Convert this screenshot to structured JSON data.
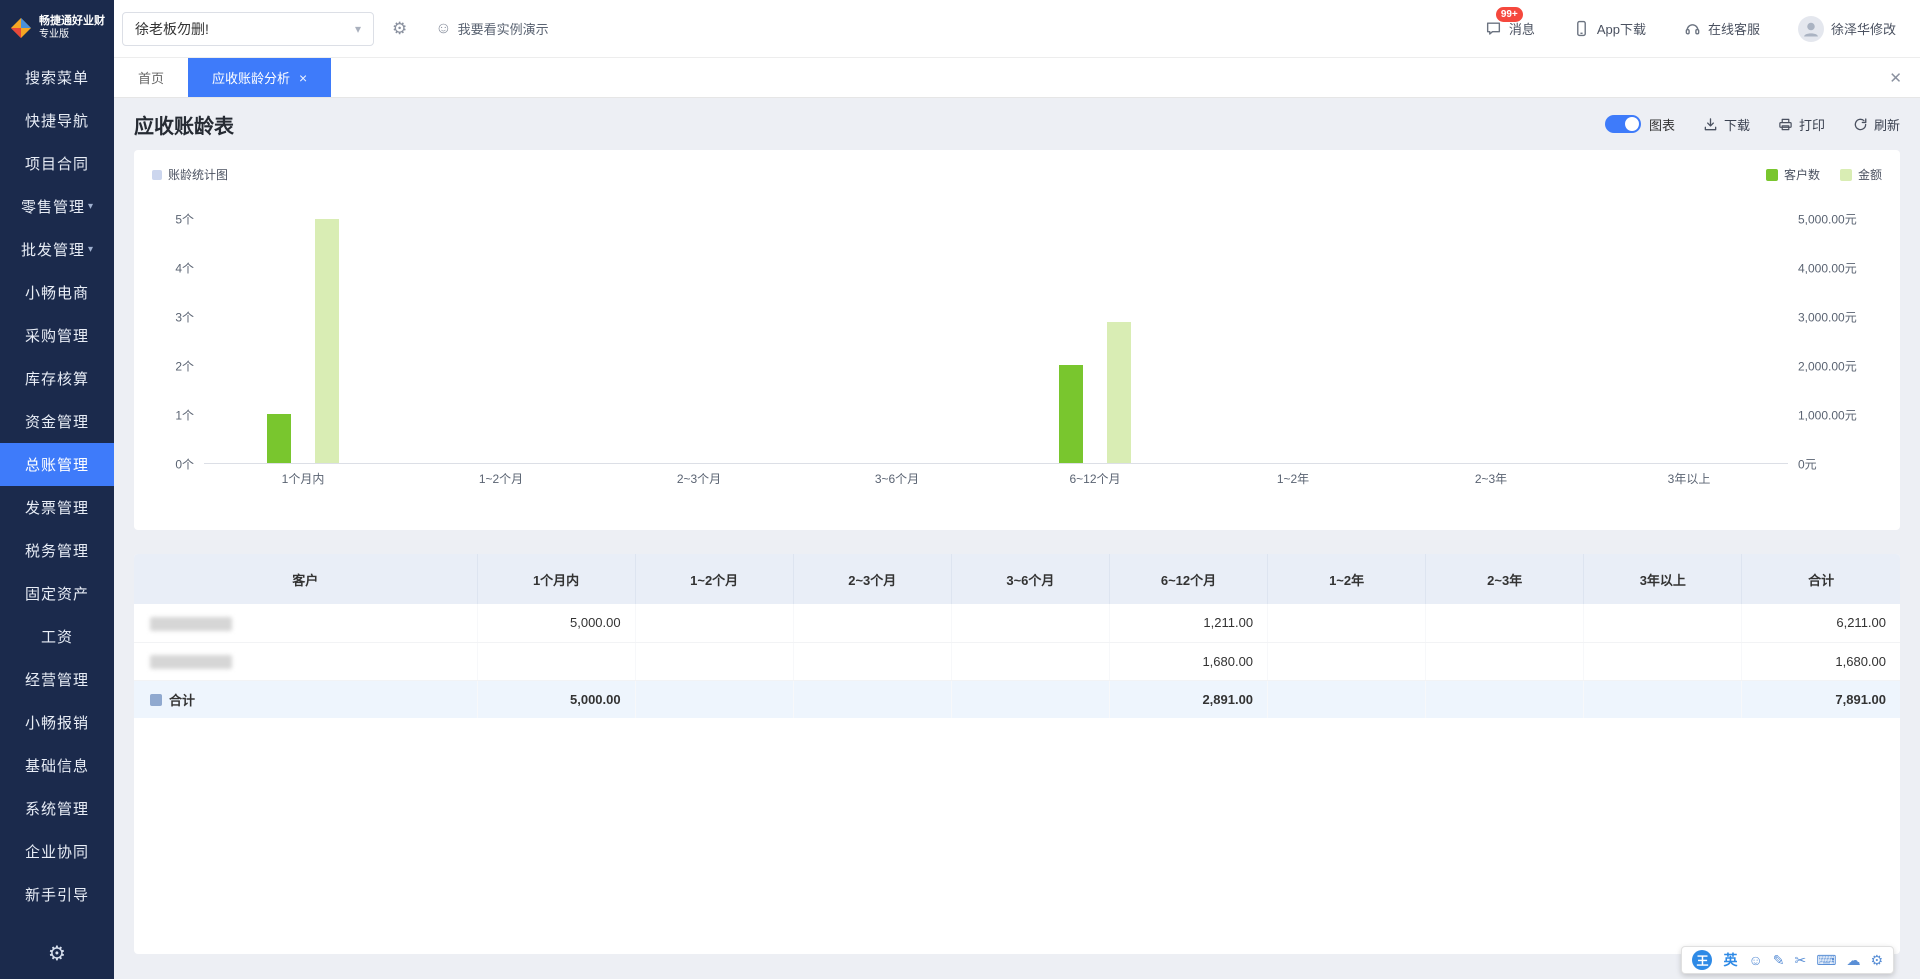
{
  "colors": {
    "accent": "#3e7bfa",
    "sidebar_bg": "#1b2a4c",
    "count_green": "#79c62e",
    "amount_green": "#d9edb4",
    "badge_red": "#f5483d",
    "table_header_bg": "#e9eef7",
    "total_row_bg": "#eef5fd"
  },
  "icons": {
    "chevron_down": "▾",
    "gear": "⚙",
    "smiley": "☺",
    "tab_close": "×",
    "close": "✕"
  },
  "sidebar": {
    "logo_line1": "畅捷通好业财",
    "logo_line2": "专业版",
    "items": [
      {
        "label": "搜索菜单"
      },
      {
        "label": "快捷导航"
      },
      {
        "label": "项目合同"
      },
      {
        "label": "零售管理",
        "arrow": true
      },
      {
        "label": "批发管理",
        "arrow": true
      },
      {
        "label": "小畅电商"
      },
      {
        "label": "采购管理"
      },
      {
        "label": "库存核算"
      },
      {
        "label": "资金管理"
      },
      {
        "label": "总账管理",
        "active": true
      },
      {
        "label": "发票管理"
      },
      {
        "label": "税务管理"
      },
      {
        "label": "固定资产"
      },
      {
        "label": "工资"
      },
      {
        "label": "经营管理"
      },
      {
        "label": "小畅报销"
      },
      {
        "label": "基础信息"
      },
      {
        "label": "系统管理"
      },
      {
        "label": "企业协同"
      },
      {
        "label": "新手引导"
      }
    ]
  },
  "topbar": {
    "company_selector": "徐老板勿删!",
    "demo_text": "我要看实例演示",
    "messages_label": "消息",
    "messages_badge": "99+",
    "app_download_label": "App下载",
    "support_label": "在线客服",
    "username": "徐泽华修改"
  },
  "tabs": [
    {
      "label": "首页",
      "active": false,
      "closable": false
    },
    {
      "label": "应收账龄分析",
      "active": true,
      "closable": true
    }
  ],
  "page": {
    "title": "应收账龄表",
    "toolbar": {
      "chart_toggle_label": "图表",
      "download_label": "下载",
      "print_label": "打印",
      "refresh_label": "刷新"
    }
  },
  "chart": {
    "title": "账龄统计图",
    "legend": [
      {
        "label": "客户数",
        "color": "#79c62e"
      },
      {
        "label": "金额",
        "color": "#d9edb4"
      }
    ]
  },
  "chart_data": {
    "type": "bar",
    "title": "账龄统计图",
    "categories": [
      "1个月内",
      "1~2个月",
      "2~3个月",
      "3~6个月",
      "6~12个月",
      "1~2年",
      "2~3年",
      "3年以上"
    ],
    "series": [
      {
        "name": "客户数",
        "axis": "left",
        "color": "#79c62e",
        "values": [
          1,
          0,
          0,
          0,
          2,
          0,
          0,
          0
        ]
      },
      {
        "name": "金额",
        "axis": "right",
        "color": "#d9edb4",
        "values": [
          5000,
          0,
          0,
          0,
          2891,
          0,
          0,
          0
        ]
      }
    ],
    "left_axis": {
      "max": 5,
      "ticks_top_to_bottom": [
        "5个",
        "4个",
        "3个",
        "2个",
        "1个",
        "0个"
      ]
    },
    "right_axis": {
      "max": 5000,
      "ticks_top_to_bottom": [
        "5,000.00元",
        "4,000.00元",
        "3,000.00元",
        "2,000.00元",
        "1,000.00元",
        "0元"
      ]
    },
    "grid": false,
    "legend_position": "top-right"
  },
  "table": {
    "headers": [
      "客户",
      "1个月内",
      "1~2个月",
      "2~3个月",
      "3~6个月",
      "6~12个月",
      "1~2年",
      "2~3年",
      "3年以上",
      "合计"
    ],
    "rows": [
      {
        "customer_redacted": true,
        "values": [
          "5,000.00",
          "",
          "",
          "",
          "1,211.00",
          "",
          "",
          "",
          "6,211.00"
        ]
      },
      {
        "customer_redacted": true,
        "values": [
          "",
          "",
          "",
          "",
          "1,680.00",
          "",
          "",
          "",
          "1,680.00"
        ]
      }
    ],
    "total": {
      "label": "合计",
      "values": [
        "5,000.00",
        "",
        "",
        "",
        "2,891.00",
        "",
        "",
        "",
        "7,891.00"
      ]
    }
  },
  "ime": {
    "logo_char": "王",
    "lang_char": "英",
    "icons": [
      "☺",
      "✎",
      "✂",
      "⌨",
      "☁",
      "⚙"
    ]
  }
}
